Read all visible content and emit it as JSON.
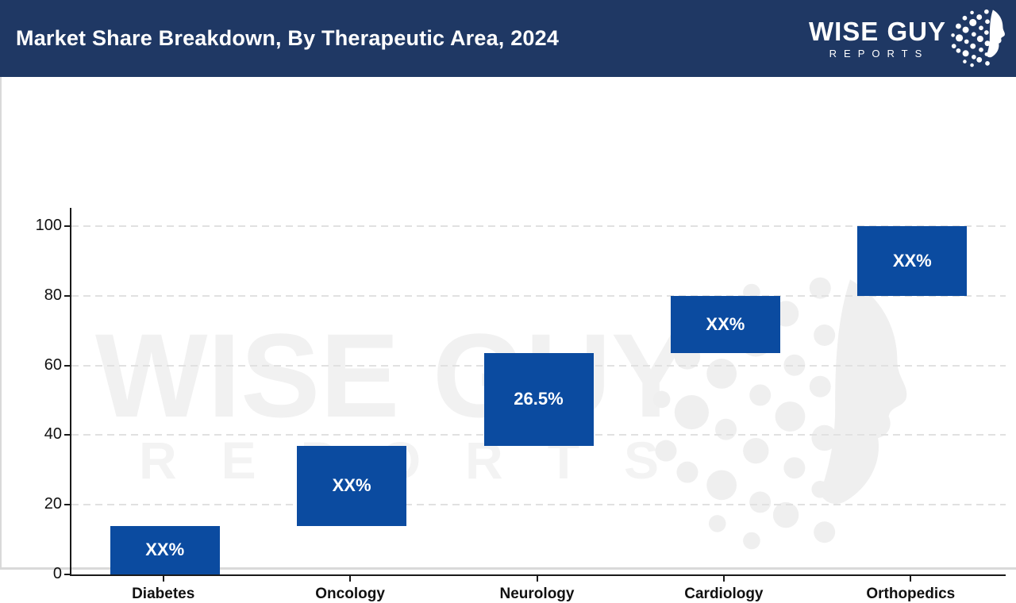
{
  "header": {
    "title": "Market Share Breakdown, By Therapeutic Area, 2024",
    "background_color": "#1f3864",
    "logo": {
      "line1": "WISE GUY",
      "line2": "REPORTS"
    }
  },
  "watermark": {
    "line1": "WISE GUY",
    "line2": "REPORTS"
  },
  "chart_data": {
    "type": "bar",
    "subtype": "waterfall-floating-bars",
    "title": "Market Share Breakdown, By Therapeutic Area, 2024",
    "categories": [
      "Diabetes",
      "Oncology",
      "Neurology",
      "Cardiology",
      "Orthopedics"
    ],
    "bars": [
      {
        "category": "Diabetes",
        "start": 0,
        "end": 14,
        "label": "XX%"
      },
      {
        "category": "Oncology",
        "start": 14,
        "end": 37,
        "label": "XX%"
      },
      {
        "category": "Neurology",
        "start": 37,
        "end": 63.5,
        "label": "26.5%"
      },
      {
        "category": "Cardiology",
        "start": 63.5,
        "end": 80,
        "label": "XX%"
      },
      {
        "category": "Orthopedics",
        "start": 80,
        "end": 100,
        "label": "XX%"
      }
    ],
    "ylim": [
      0,
      100
    ],
    "yticks": [
      0,
      20,
      40,
      60,
      80,
      100
    ],
    "xlabel": "",
    "ylabel": "",
    "grid": "horizontal-dashed",
    "legend": "none",
    "bar_color": "#0b4ba0",
    "bar_label_color": "#ffffff",
    "axis_color": "#1a1a1a",
    "grid_color": "#e1e1e1"
  }
}
